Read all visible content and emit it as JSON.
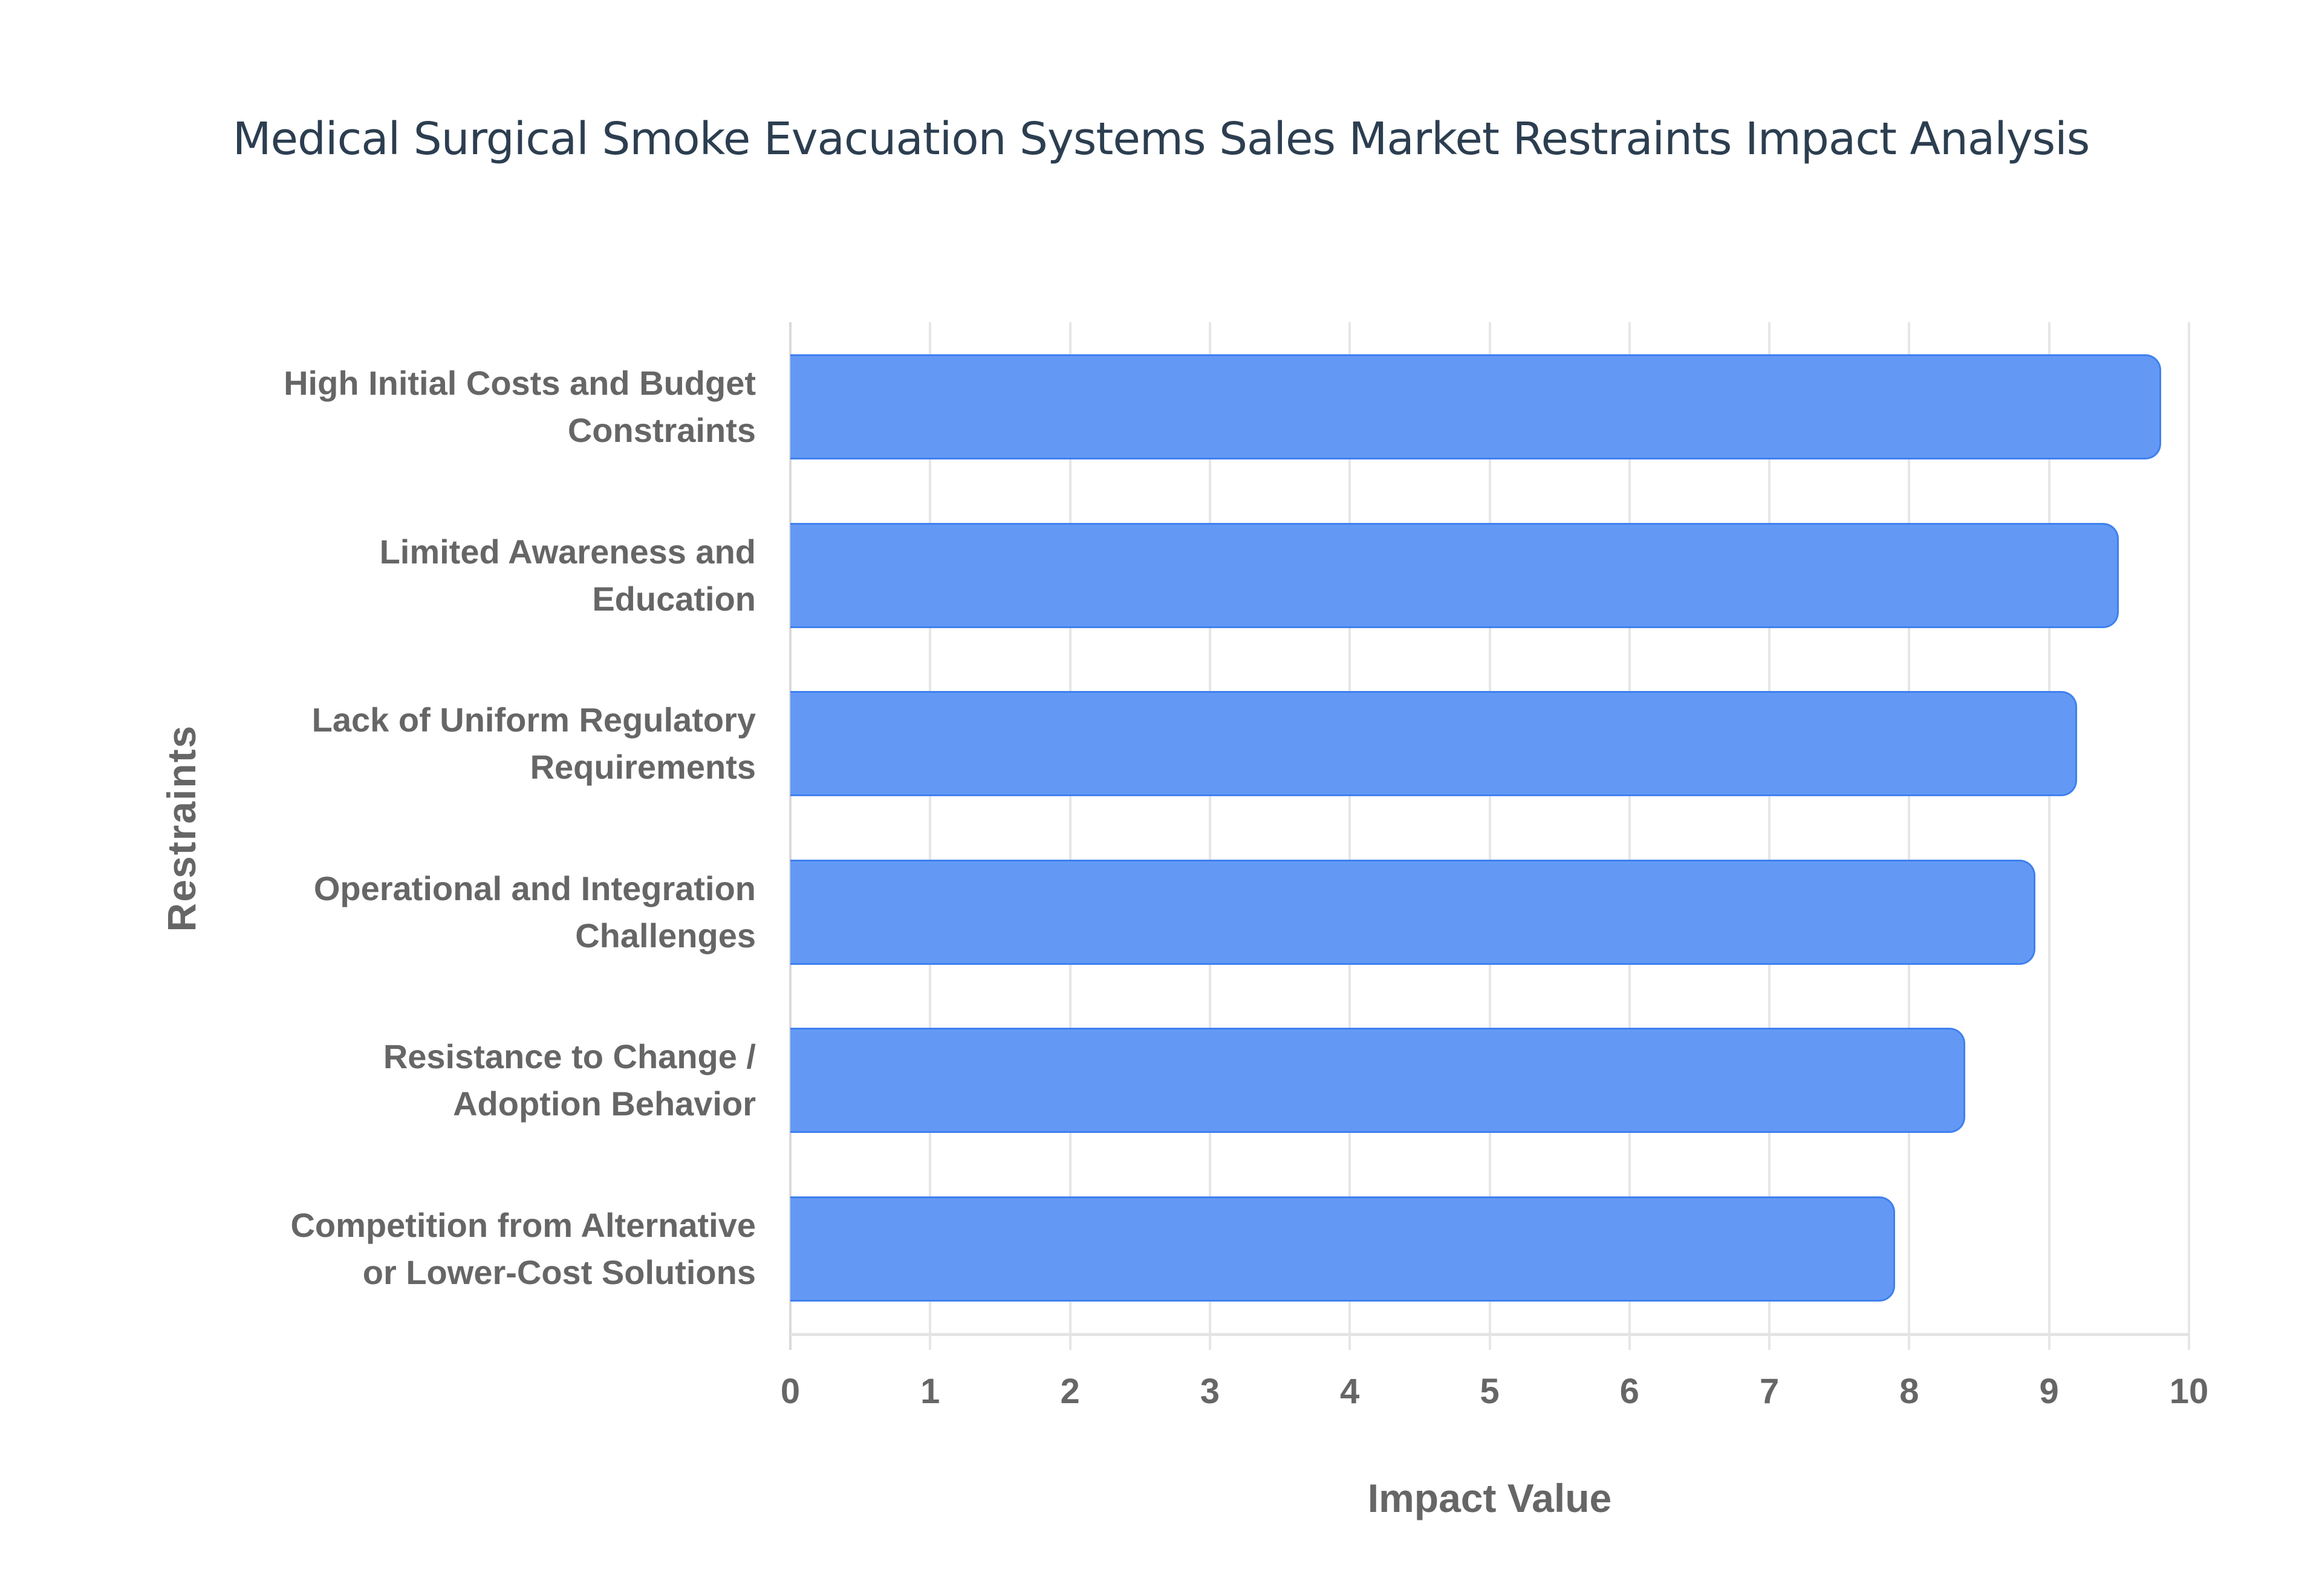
{
  "chart_data": {
    "type": "bar",
    "orientation": "horizontal",
    "title": "Medical Surgical Smoke Evacuation Systems Sales Market Restraints Impact Analysis",
    "xlabel": "Impact Value",
    "ylabel": "Restraints",
    "xlim": [
      0,
      10
    ],
    "xticks": [
      "0",
      "1",
      "2",
      "3",
      "4",
      "5",
      "6",
      "7",
      "8",
      "9",
      "10"
    ],
    "grid": true,
    "legend": null,
    "categories": [
      "High Initial Costs and Budget\nConstraints",
      "Limited Awareness and\nEducation",
      "Lack of Uniform Regulatory\nRequirements",
      "Operational and Integration\nChallenges",
      "Resistance to Change /\nAdoption Behavior",
      "Competition from Alternative\nor Lower-Cost Solutions"
    ],
    "values": [
      9.8,
      9.5,
      9.2,
      8.9,
      8.4,
      7.9
    ],
    "colors": {
      "bar_fill": "#6399f5",
      "bar_border": "#3f80ee",
      "title": "#2c3e50",
      "axis_text": "#666666",
      "grid": "#e6e6e6"
    }
  }
}
